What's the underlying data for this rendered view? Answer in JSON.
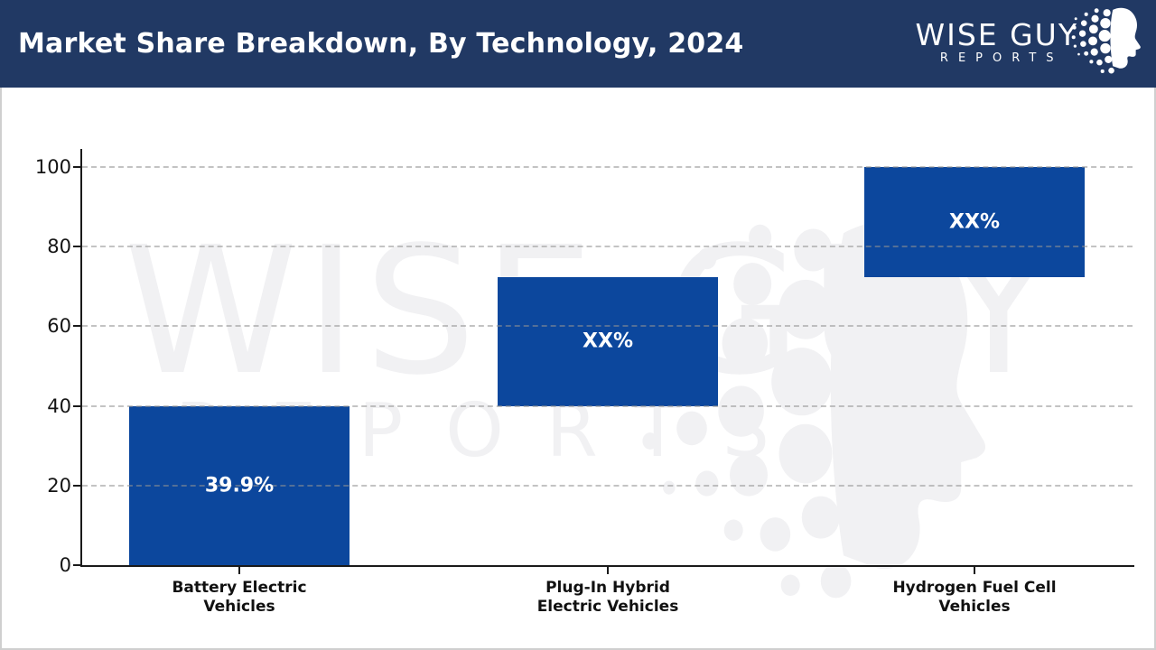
{
  "header": {
    "title": "Market Share Breakdown, By Technology, 2024",
    "logo": {
      "line1": "WISE GUY",
      "line2": "REPORTS"
    }
  },
  "watermark": {
    "line1": "WISE GUY",
    "line2": "REPORTS"
  },
  "colors": {
    "header_bg": "#213964",
    "bar": "#0C479D",
    "bar_label": "#FFFFFF",
    "axis": "#1A1A1A",
    "gridline": "rgba(145,145,145,0.55)",
    "watermark": "#F1F1F3",
    "tick_label": "#141414",
    "category_label": "#111111",
    "title": "#FFFFFF",
    "page_border": "#CFCFCF"
  },
  "chart_data": {
    "type": "bar",
    "subtype": "waterfall",
    "title": "Market Share Breakdown, By Technology, 2024",
    "categories": [
      {
        "line1": "Battery Electric",
        "line2": "Vehicles"
      },
      {
        "line1": "Plug-In Hybrid",
        "line2": "Electric Vehicles"
      },
      {
        "line1": "Hydrogen Fuel Cell",
        "line2": "Vehicles"
      }
    ],
    "segments": [
      {
        "category": "Battery Electric Vehicles",
        "from": 0,
        "to": 39.9,
        "label": "39.9%"
      },
      {
        "category": "Plug-In Hybrid Electric Vehicles",
        "from": 39.9,
        "to": 72.4,
        "label": "XX%"
      },
      {
        "category": "Hydrogen Fuel Cell Vehicles",
        "from": 72.4,
        "to": 99.9,
        "label": "XX%"
      }
    ],
    "yticks": [
      0,
      20,
      40,
      60,
      80,
      100
    ],
    "ylim": [
      0,
      105
    ],
    "xlabel": "",
    "ylabel": "",
    "grid": "dashed-horizontal",
    "legend": "none"
  }
}
